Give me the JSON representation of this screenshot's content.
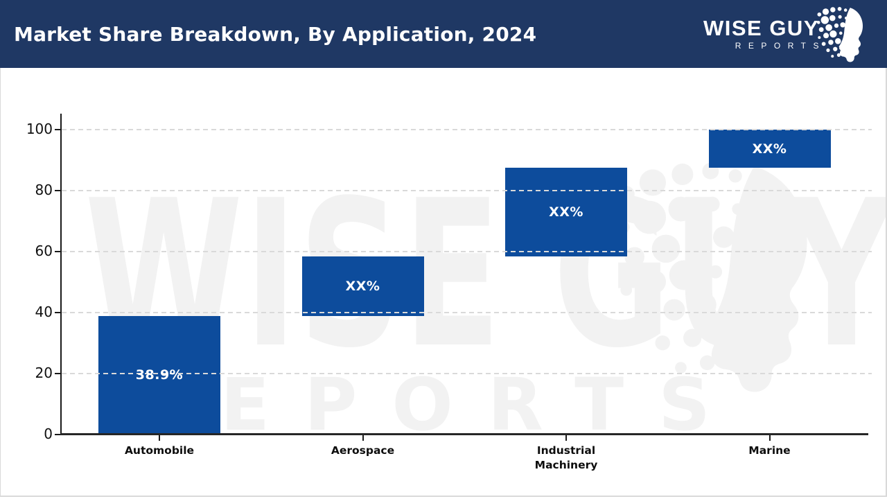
{
  "header": {
    "title": "Market Share Breakdown, By Application, 2024",
    "bg_color": "#1f3864",
    "logo": {
      "line1": "WISE GUY",
      "line2": "REPORTS"
    }
  },
  "watermark": {
    "line1": "WISE GUY",
    "line2": "REPORTS"
  },
  "chart_data": {
    "type": "bar",
    "subtype": "waterfall-floating-bars",
    "title": "Market Share Breakdown, By Application, 2024",
    "xlabel": "",
    "ylabel": "",
    "categories": [
      "Automobile",
      "Aerospace",
      "Industrial Machinery",
      "Marine"
    ],
    "series": [
      {
        "name": "Market Share",
        "starts": [
          0,
          38.9,
          58.4,
          87.5
        ],
        "ends": [
          38.9,
          58.4,
          87.5,
          100
        ],
        "segment_values": [
          38.9,
          19.5,
          29.1,
          12.5
        ]
      }
    ],
    "bar_labels": [
      "38.9%",
      "XX%",
      "XX%",
      "XX%"
    ],
    "ylim": [
      0,
      105
    ],
    "yticks": [
      0,
      20,
      40,
      60,
      80,
      100
    ],
    "grid": "horizontal dashed",
    "legend": "none",
    "bar_color": "#0d4c9c",
    "label_color": "#ffffff",
    "grid_color": "#d9d9d9"
  }
}
